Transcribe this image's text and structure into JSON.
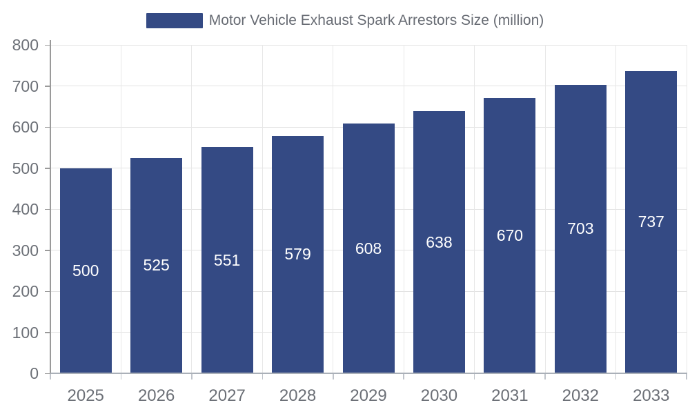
{
  "chart_data": {
    "type": "bar",
    "title": "Motor Vehicle Exhaust Spark Arrestors Size (million)",
    "categories": [
      "2025",
      "2026",
      "2027",
      "2028",
      "2029",
      "2030",
      "2031",
      "2032",
      "2033"
    ],
    "values": [
      500,
      525,
      551,
      579,
      608,
      638,
      670,
      703,
      737
    ],
    "series": [
      {
        "name": "Motor Vehicle Exhaust Spark Arrestors Size (million)",
        "values": [
          500,
          525,
          551,
          579,
          608,
          638,
          670,
          703,
          737
        ]
      }
    ],
    "xlabel": "",
    "ylabel": "",
    "ylim": [
      0,
      800
    ],
    "yticks": [
      0,
      100,
      200,
      300,
      400,
      500,
      600,
      700,
      800
    ],
    "grid": true,
    "legend_position": "top-center",
    "bar_color": "#344a84",
    "value_label_color": "#ffffff"
  }
}
